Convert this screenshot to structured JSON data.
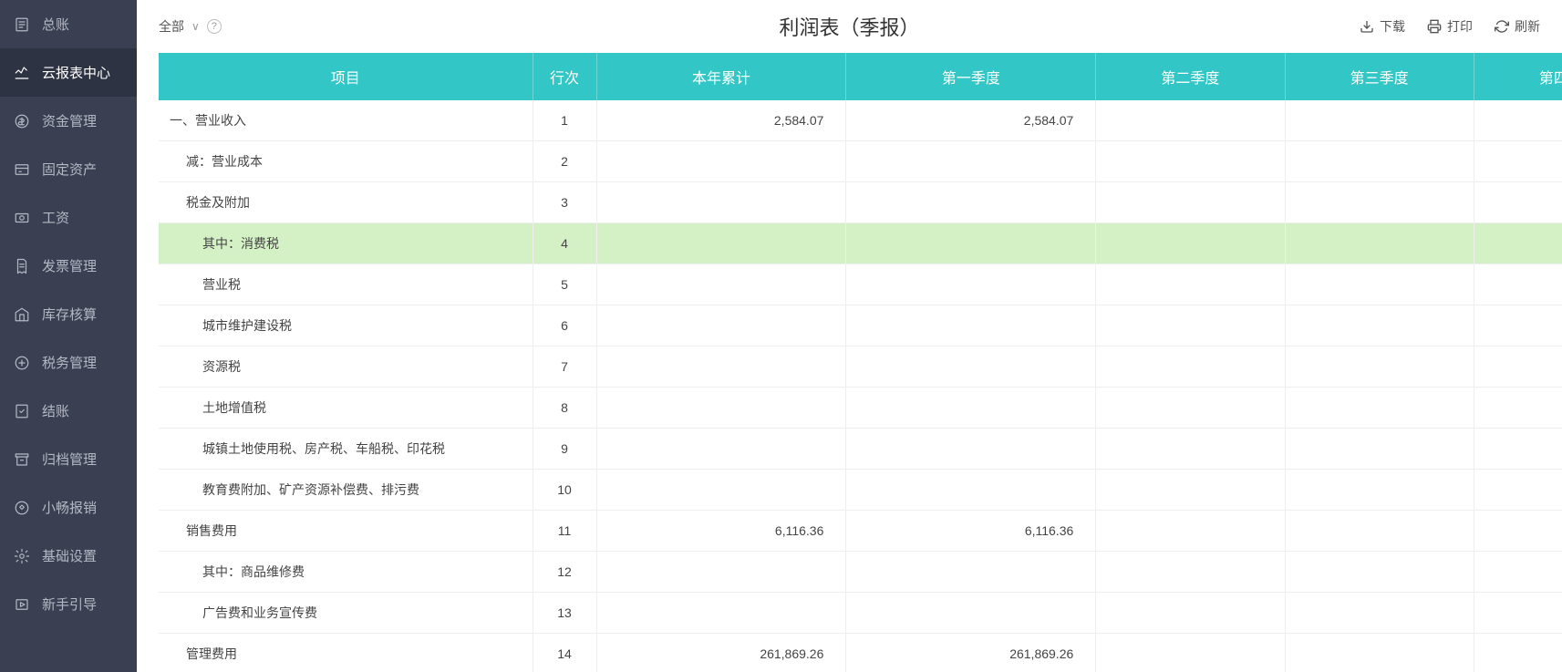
{
  "sidebar": {
    "items": [
      {
        "label": "总账",
        "icon": "ledger"
      },
      {
        "label": "云报表中心",
        "icon": "report",
        "active": true
      },
      {
        "label": "资金管理",
        "icon": "money"
      },
      {
        "label": "固定资产",
        "icon": "asset"
      },
      {
        "label": "工资",
        "icon": "salary"
      },
      {
        "label": "发票管理",
        "icon": "invoice"
      },
      {
        "label": "库存核算",
        "icon": "inventory"
      },
      {
        "label": "税务管理",
        "icon": "tax"
      },
      {
        "label": "结账",
        "icon": "close"
      },
      {
        "label": "归档管理",
        "icon": "archive"
      },
      {
        "label": "小畅报销",
        "icon": "expense"
      },
      {
        "label": "基础设置",
        "icon": "settings"
      },
      {
        "label": "新手引导",
        "icon": "guide"
      }
    ]
  },
  "toolbar": {
    "filter_label": "全部",
    "title": "利润表（季报）",
    "download_label": "下载",
    "print_label": "打印",
    "refresh_label": "刷新"
  },
  "table": {
    "columns": [
      "项目",
      "行次",
      "本年累计",
      "第一季度",
      "第二季度",
      "第三季度",
      "第四季度"
    ],
    "rows": [
      {
        "label": "一、营业收入",
        "indent": 0,
        "row_num": "1",
        "ytd": "2,584.07",
        "q1": "2,584.07",
        "q2": "",
        "q3": "",
        "q4": ""
      },
      {
        "label": "减：营业成本",
        "indent": 1,
        "row_num": "2",
        "ytd": "",
        "q1": "",
        "q2": "",
        "q3": "",
        "q4": ""
      },
      {
        "label": "税金及附加",
        "indent": 1,
        "row_num": "3",
        "ytd": "",
        "q1": "",
        "q2": "",
        "q3": "",
        "q4": ""
      },
      {
        "label": "其中：消费税",
        "indent": 2,
        "row_num": "4",
        "ytd": "",
        "q1": "",
        "q2": "",
        "q3": "",
        "q4": "",
        "highlight": true
      },
      {
        "label": "营业税",
        "indent": 2,
        "row_num": "5",
        "ytd": "",
        "q1": "",
        "q2": "",
        "q3": "",
        "q4": ""
      },
      {
        "label": "城市维护建设税",
        "indent": 2,
        "row_num": "6",
        "ytd": "",
        "q1": "",
        "q2": "",
        "q3": "",
        "q4": ""
      },
      {
        "label": "资源税",
        "indent": 2,
        "row_num": "7",
        "ytd": "",
        "q1": "",
        "q2": "",
        "q3": "",
        "q4": ""
      },
      {
        "label": "土地增值税",
        "indent": 2,
        "row_num": "8",
        "ytd": "",
        "q1": "",
        "q2": "",
        "q3": "",
        "q4": ""
      },
      {
        "label": "城镇土地使用税、房产税、车船税、印花税",
        "indent": 2,
        "row_num": "9",
        "ytd": "",
        "q1": "",
        "q2": "",
        "q3": "",
        "q4": ""
      },
      {
        "label": "教育费附加、矿产资源补偿费、排污费",
        "indent": 2,
        "row_num": "10",
        "ytd": "",
        "q1": "",
        "q2": "",
        "q3": "",
        "q4": ""
      },
      {
        "label": "销售费用",
        "indent": 1,
        "row_num": "11",
        "ytd": "6,116.36",
        "q1": "6,116.36",
        "q2": "",
        "q3": "",
        "q4": ""
      },
      {
        "label": "其中：商品维修费",
        "indent": 2,
        "row_num": "12",
        "ytd": "",
        "q1": "",
        "q2": "",
        "q3": "",
        "q4": ""
      },
      {
        "label": "广告费和业务宣传费",
        "indent": 2,
        "row_num": "13",
        "ytd": "",
        "q1": "",
        "q2": "",
        "q3": "",
        "q4": ""
      },
      {
        "label": "管理费用",
        "indent": 1,
        "row_num": "14",
        "ytd": "261,869.26",
        "q1": "261,869.26",
        "q2": "",
        "q3": "",
        "q4": ""
      }
    ]
  },
  "colors": {
    "sidebar_bg": "#3a3f51",
    "sidebar_active_bg": "#2e3344",
    "header_bg": "#33c6c6",
    "highlight_bg": "#d4f0c5",
    "border": "#eeeeee"
  }
}
